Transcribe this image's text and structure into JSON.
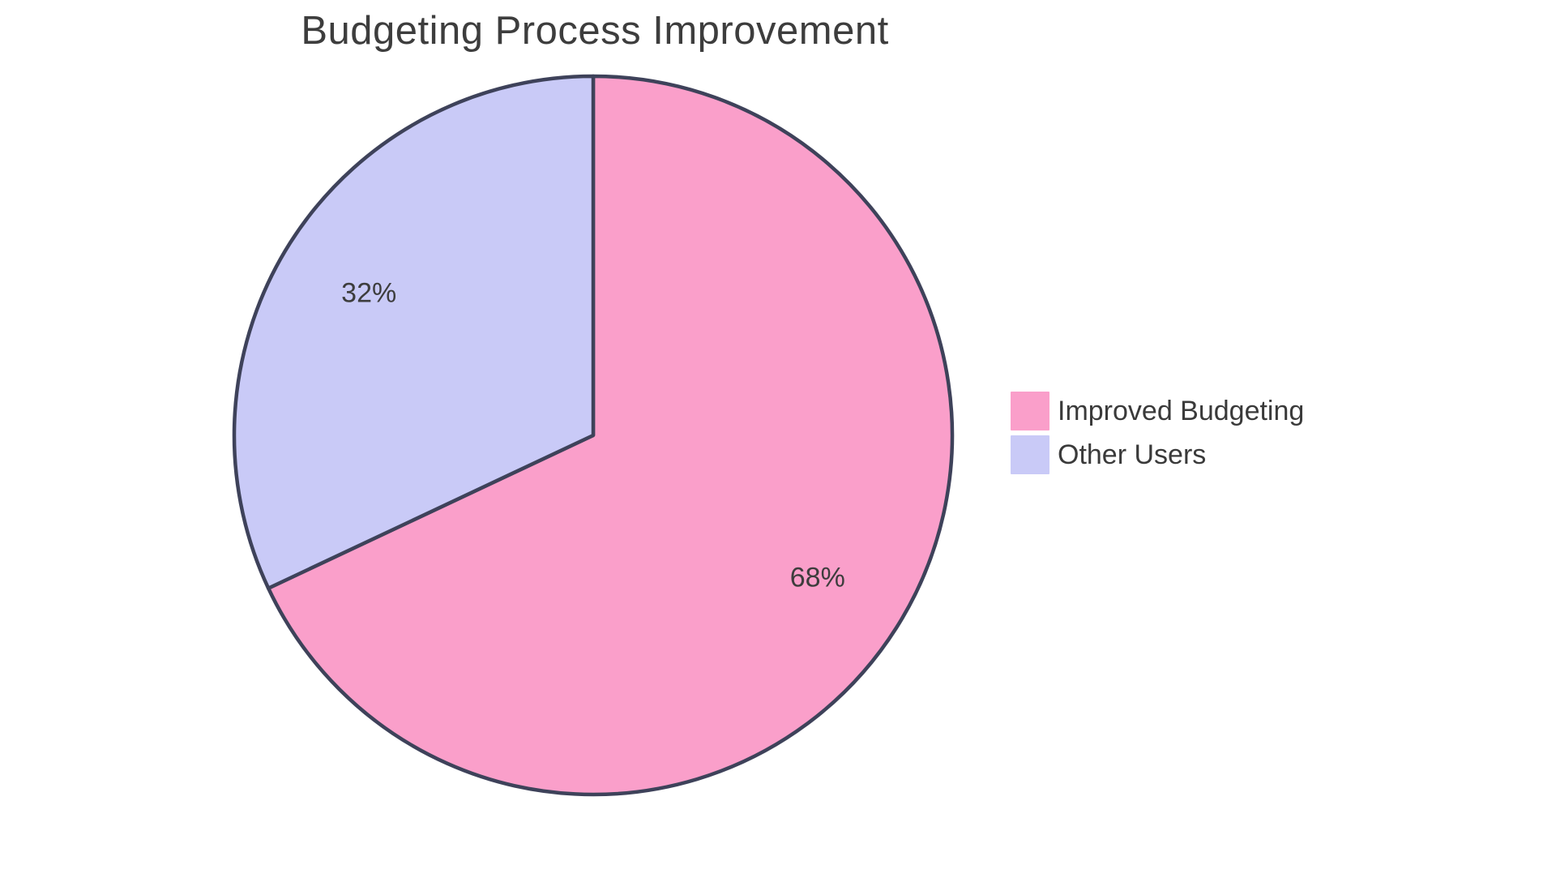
{
  "page": {
    "background_color": "#ffffff"
  },
  "chart_data": {
    "type": "pie",
    "title": "Budgeting Process Improvement",
    "segments": [
      {
        "label": "Improved Budgeting",
        "value": 68,
        "percent_label": "68%",
        "color": "#fa9fca"
      },
      {
        "label": "Other Users",
        "value": 32,
        "percent_label": "32%",
        "color": "#c9caf7"
      }
    ],
    "start_angle_deg": 0,
    "direction": "clockwise",
    "stroke_color": "#3e425a",
    "stroke_width": 4.5,
    "label_color": "#3d3d3d",
    "title_color": "#3d3d3d",
    "legend_position": "right",
    "grid": "off"
  }
}
